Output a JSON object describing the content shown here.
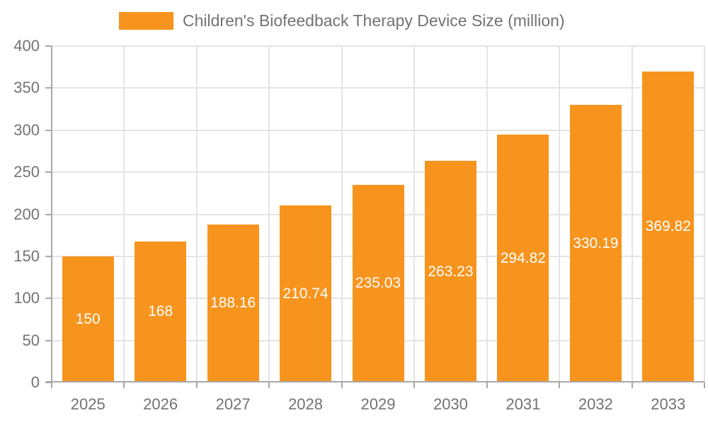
{
  "chart_data": {
    "type": "bar",
    "title": "Children's Biofeedback Therapy Device Size (million)",
    "categories": [
      "2025",
      "2026",
      "2027",
      "2028",
      "2029",
      "2030",
      "2031",
      "2032",
      "2033"
    ],
    "values": [
      150,
      168,
      188.16,
      210.74,
      235.03,
      263.23,
      294.82,
      330.19,
      369.82
    ],
    "value_labels": [
      "150",
      "168",
      "188.16",
      "210.74",
      "235.03",
      "263.23",
      "294.82",
      "330.19",
      "369.82"
    ],
    "xlabel": "",
    "ylabel": "",
    "ylim": [
      0,
      400
    ],
    "ytick_step": 50,
    "grid": true,
    "legend_position": "top"
  },
  "colors": {
    "bar": "#F7941E",
    "gridline": "#E4E4E4",
    "axis_line": "#A8A8A8",
    "axis_text": "#737373",
    "bar_label_text": "#FFFFFF"
  }
}
